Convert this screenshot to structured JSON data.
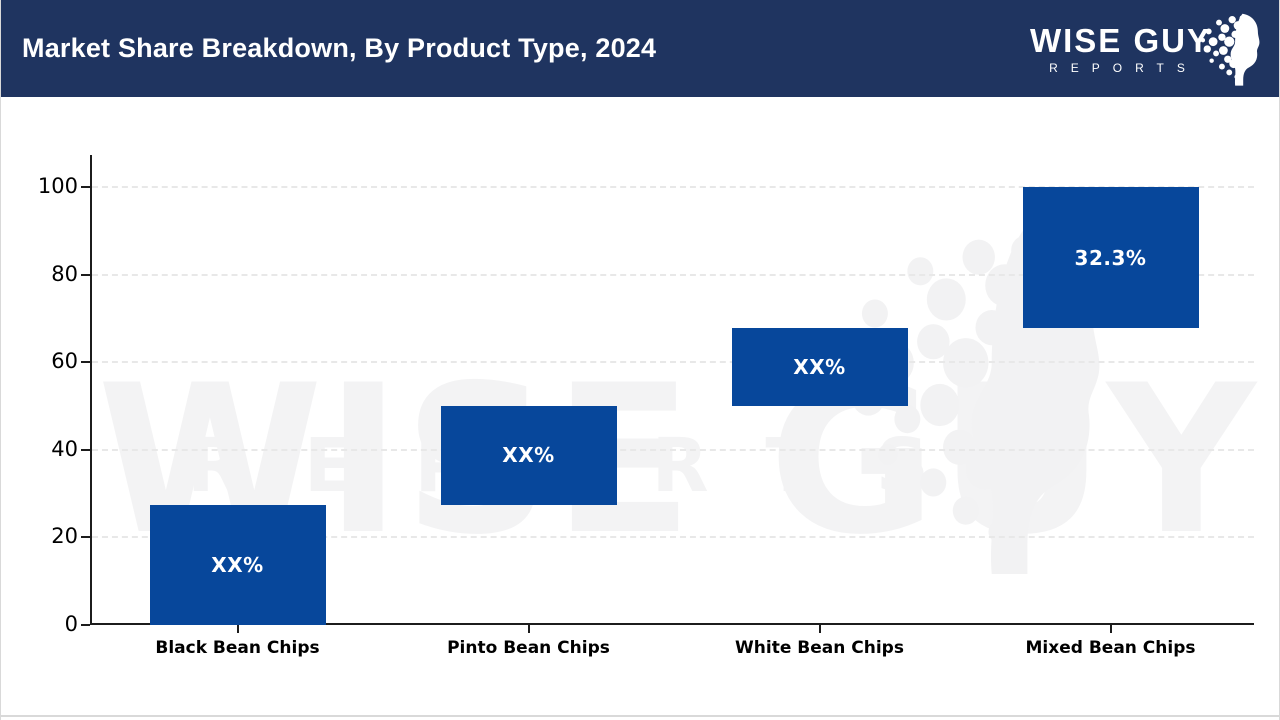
{
  "header": {
    "title": "Market Share Breakdown, By Product Type, 2024",
    "logo": {
      "name": "WISE GUY",
      "sub": "REPORTS"
    }
  },
  "watermark": {
    "line1": "WISE GUY",
    "line2": "REPORTS"
  },
  "chart_data": {
    "type": "bar",
    "subtype": "floating-segment waterfall of market share",
    "title": "Market Share Breakdown, By Product Type, 2024",
    "categories": [
      "Black Bean Chips",
      "Pinto Bean Chips",
      "White Bean Chips",
      "Mixed Bean Chips"
    ],
    "segments": [
      {
        "category": "Black Bean Chips",
        "start": 0,
        "end": 27.4,
        "label": "XX%"
      },
      {
        "category": "Pinto Bean Chips",
        "start": 27.4,
        "end": 50.1,
        "label": "XX%"
      },
      {
        "category": "White Bean Chips",
        "start": 50.1,
        "end": 67.7,
        "label": "XX%"
      },
      {
        "category": "Mixed Bean Chips",
        "start": 67.7,
        "end": 100,
        "label": "32.3%"
      }
    ],
    "ylim": [
      0,
      100
    ],
    "yticks": [
      0,
      20,
      40,
      60,
      80,
      100
    ],
    "grid": "dashed horizontal gridlines",
    "legend": "none",
    "bar_color": "#07479b",
    "value_label_color": "#ffffff"
  },
  "colors": {
    "header_bg": "#1f3460",
    "bar": "#07479b",
    "axis": "#1c1c1c",
    "grid": "#e8e8e8",
    "watermark": "#f3f3f4",
    "page_bg": "#ffffff"
  }
}
